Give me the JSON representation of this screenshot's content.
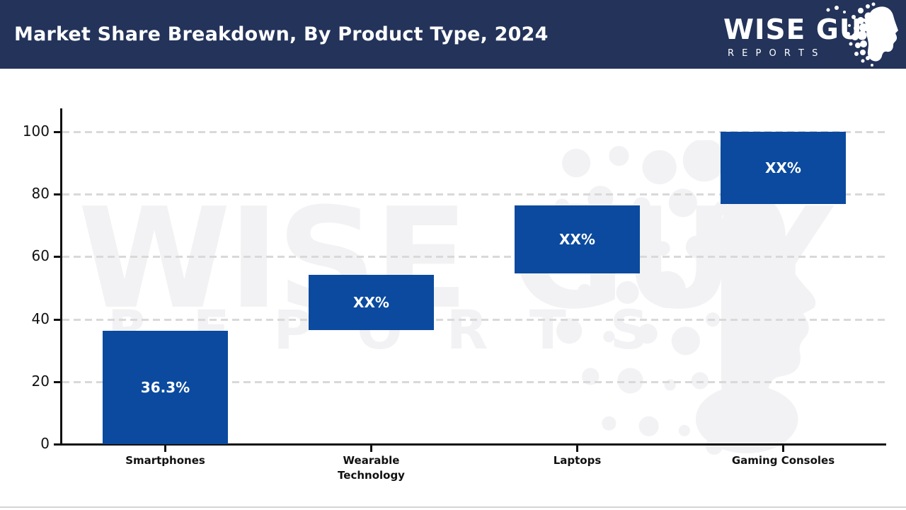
{
  "header": {
    "title": "Market Share Breakdown, By Product Type, 2024",
    "logo": {
      "line1": "WISE GUY",
      "line2": "R E P O R T S"
    }
  },
  "watermark": {
    "line1": "WISE GUY",
    "line2": "REPORTS"
  },
  "chart_data": {
    "type": "bar",
    "subtype": "floating-waterfall",
    "title": "Market Share Breakdown, By Product Type, 2024",
    "categories": [
      "Smartphones",
      "Wearable Technology",
      "Laptops",
      "Gaming Consoles"
    ],
    "category_lines": [
      [
        "Smartphones"
      ],
      [
        "Wearable",
        "Technology"
      ],
      [
        "Laptops"
      ],
      [
        "Gaming Consoles"
      ]
    ],
    "segments": [
      {
        "category": "Smartphones",
        "from": 0,
        "to": 36.3,
        "label": "36.3%"
      },
      {
        "category": "Wearable Technology",
        "from": 36.6,
        "to": 54.3,
        "label": "XX%"
      },
      {
        "category": "Laptops",
        "from": 54.6,
        "to": 76.4,
        "label": "XX%"
      },
      {
        "category": "Gaming Consoles",
        "from": 76.9,
        "to": 99.9,
        "label": "XX%"
      }
    ],
    "xlabel": "",
    "ylabel": "",
    "ylim": [
      0,
      100
    ],
    "yticks": [
      0,
      20,
      40,
      60,
      80,
      100
    ],
    "grid": "horizontal-dashed",
    "legend": "none",
    "bar_color": "#0b4a9e",
    "bar_label_color": "#ffffff",
    "axis_color": "#111111",
    "grid_color": "#d9d9d9"
  },
  "colors": {
    "header_bg": "#23335a",
    "header_text": "#ffffff",
    "watermark": "#f2f2f4",
    "background": "#ffffff"
  }
}
